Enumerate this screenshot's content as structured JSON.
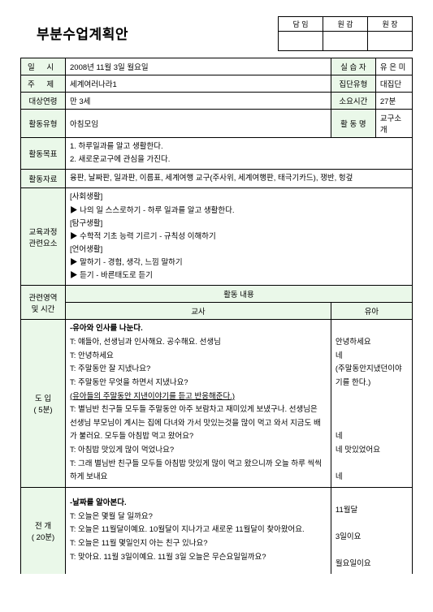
{
  "approval": {
    "col1": "담 임",
    "col2": "원 감",
    "col3": "원 장"
  },
  "title": "부분수업계획안",
  "meta": {
    "date_label": "일   시",
    "date_value": "2008년 11월 3일 월요일",
    "trainee_label": "실 습 자",
    "trainee_value": "유 은 미",
    "topic_label": "주   제",
    "topic_value": "세계여러나라1",
    "group_label": "집단유형",
    "group_value": "대집단",
    "age_label": "대상연령",
    "age_value": "만 3세",
    "time_label": "소요시간",
    "time_value": "27분",
    "activity_type_label": "활동유형",
    "activity_type_value": "아침모임",
    "activity_name_label": "활 동 명",
    "activity_name_value": "교구소개"
  },
  "goal": {
    "label": "활동목표",
    "l1": "1. 하루일과를 알고 생활한다.",
    "l2": "2. 새로운교구에 관심을 가진다."
  },
  "materials": {
    "label": "활동자료",
    "text": "융판, 날짜판, 일과판, 이름표, 세계여행 교구(주사위, 세계여행판, 태극기카드), 쟁반, 헝겊"
  },
  "curriculum": {
    "label": "교육과정\n관련요소",
    "s1": "[사회생활]",
    "s1a": "▶ 나의 일 스스로하기 - 하루 일과를 알고 생활한다.",
    "s2": "[탐구생활]",
    "s2a": "▶ 수학적 기초 능력 기르기 - 규칙성 이해하기",
    "s3": "[언어생활]",
    "s3a": "▶ 말하기 - 경험, 생각, 느낌 말하기",
    "s3b": "▶ 듣기 - 바른태도로 듣기"
  },
  "activity": {
    "area_label": "관련영역\n및 시간",
    "content_header": "활동 내용",
    "teacher_header": "교사",
    "child_header": "유아"
  },
  "intro": {
    "label": "도  입\n( 5분)",
    "lead": "-유아와 인사를 나눈다.",
    "t1": "T: 얘들아, 선생님과 인사해요. 공수해요. 선생님",
    "t2": "T: 안녕하세요",
    "t3": "T: 주말동안 잘 지냈나요?",
    "t4": "T: 주말동안 무엇을 하면서 지냈나요?",
    "u1": "(유아들의 주말동안 지낸이야기를 듣고 반응해준다.)",
    "t5": "T: 별님반 친구들 모두들 주말동안 아주 보람차고 재미있게 보냈구나. 선생님은 선생님 부모님이 계시는 집에 다녀와 가서 맛있는것을 많이 먹고 와서 지금도 배가 불러요. 모두들 아침밥 먹고 왔어요?",
    "t6": "T: 아침밥 맛있게 많이 먹었나요?",
    "t7": "T: 그래 별님반 친구들 모두들 아침밥 맛있게 많이 먹고 왔으니까 오늘 하루 씩씩하게 보내요",
    "c1": "안녕하세요",
    "c2": "네",
    "c3": "(주말동안지냈던이야기를 한다.)",
    "c4": "네",
    "c5": "네 맛있었어요",
    "c6": "네"
  },
  "develop": {
    "label": "전  개\n( 20분)",
    "lead": "-날짜를 알아본다.",
    "t1": "T: 오늘은 몇월 달 일까요?",
    "t2": "T: 오늘은 11월달이예요. 10월달이 지나가고 새로운 11월달이 찾아왔어요.",
    "t3": "T: 오늘은 11월 몇일인지 아는 친구 있나요?",
    "t4": "T: 맞아요. 11월 3일이예요. 11월 3일 오늘은 무슨요일일까요?",
    "c1": "11월달",
    "c2": "3일이요",
    "c3": "월요일이요"
  }
}
